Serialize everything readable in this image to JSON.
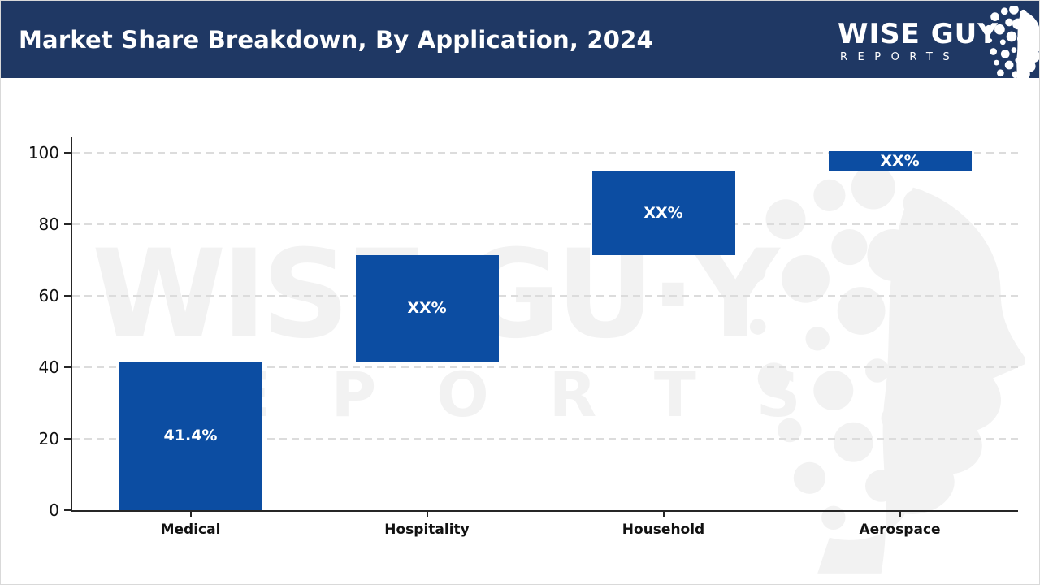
{
  "header": {
    "title": "Market Share Breakdown, By Application, 2024",
    "logo": {
      "line1": "WISE GUY",
      "line2": "REPORTS"
    }
  },
  "watermark": {
    "line1": "WISE GU·Y",
    "line2": "REPORTS"
  },
  "chart_data": {
    "type": "bar",
    "subtype": "waterfall",
    "title": "Market Share Breakdown, By Application, 2024",
    "categories": [
      "Medical",
      "Hospitality",
      "Household",
      "Aerospace"
    ],
    "segments": [
      {
        "label": "Medical",
        "start": 0,
        "end": 41.4,
        "value_label": "41.4%"
      },
      {
        "label": "Hospitality",
        "start": 41.4,
        "end": 71.4,
        "value_label": "XX%"
      },
      {
        "label": "Household",
        "start": 71.4,
        "end": 94.8,
        "value_label": "XX%"
      },
      {
        "label": "Aerospace",
        "start": 94.8,
        "end": 100.5,
        "value_label": "XX%"
      }
    ],
    "yticks": [
      0,
      20,
      40,
      60,
      80,
      100
    ],
    "ylim": [
      0,
      104.3
    ],
    "xlabel": "",
    "ylabel": "",
    "grid": "dashed-horizontal",
    "legend": "none",
    "bar_color": "#0C4DA2",
    "bar_label_color": "#FFFFFF",
    "axis_color": "#262626",
    "gridline_color": "#DCDCDC",
    "header_color": "#1F3864"
  }
}
